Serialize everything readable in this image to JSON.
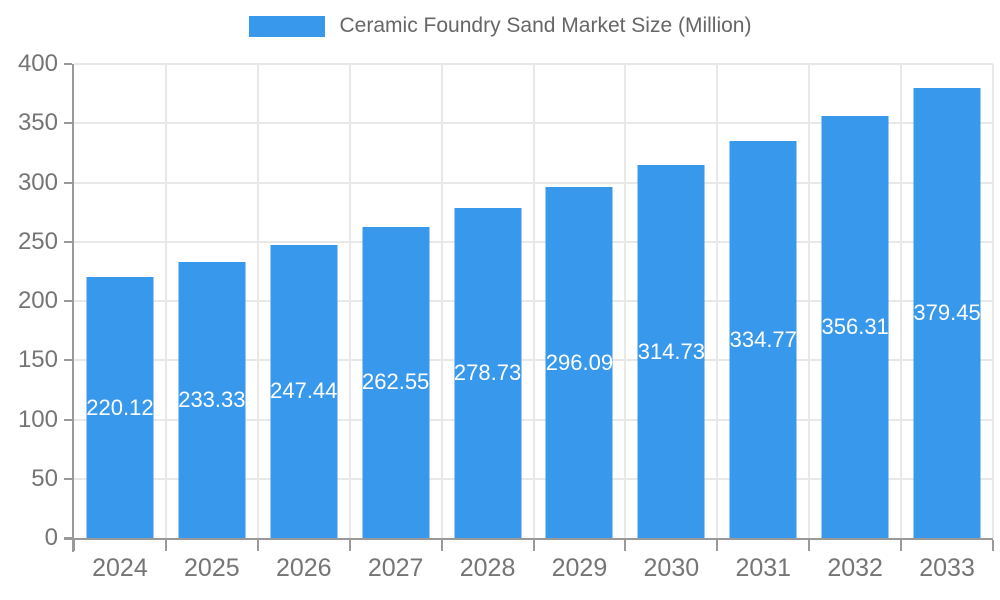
{
  "legend": {
    "label": "Ceramic Foundry Sand Market Size (Million)"
  },
  "chart_data": {
    "type": "bar",
    "title": "Ceramic Foundry Sand Market Size (Million)",
    "categories": [
      "2024",
      "2025",
      "2026",
      "2027",
      "2028",
      "2029",
      "2030",
      "2031",
      "2032",
      "2033"
    ],
    "values": [
      220.12,
      233.33,
      247.44,
      262.55,
      278.73,
      296.09,
      314.73,
      334.77,
      356.31,
      379.45
    ],
    "value_labels": [
      "220.12",
      "233.33",
      "247.44",
      "262.55",
      "278.73",
      "296.09",
      "314.73",
      "334.77",
      "356.31",
      "379.45"
    ],
    "xlabel": "",
    "ylabel": "",
    "ylim": [
      0,
      400
    ],
    "yticks": [
      0,
      50,
      100,
      150,
      200,
      250,
      300,
      350,
      400
    ],
    "grid": true,
    "legend_position": "top",
    "colors": {
      "bar": "#3898EC",
      "bar_label": "#ffffff",
      "legend_text": "#666666",
      "axis_label": "#757575",
      "grid_line": "#e8e8e8",
      "axis_line": "#999999",
      "background": "#ffffff"
    }
  }
}
